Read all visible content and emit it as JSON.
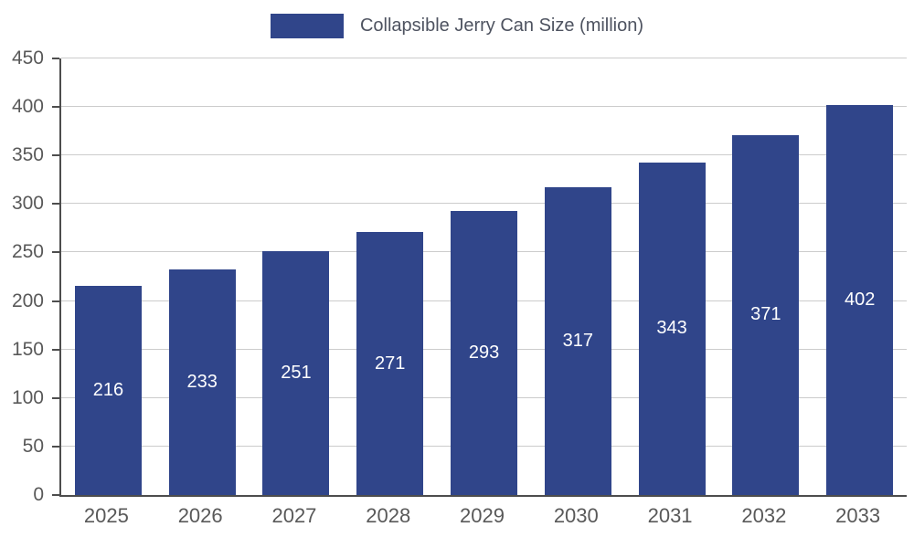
{
  "chart_data": {
    "type": "bar",
    "title": "Collapsible Jerry Can Size (million)",
    "categories": [
      "2025",
      "2026",
      "2027",
      "2028",
      "2029",
      "2030",
      "2031",
      "2032",
      "2033"
    ],
    "values": [
      216,
      233,
      251,
      271,
      293,
      317,
      343,
      371,
      402
    ],
    "xlabel": "",
    "ylabel": "",
    "ylim": [
      0,
      450
    ],
    "ytick_step": 50,
    "grid": true,
    "legend_position": "top",
    "bar_color": "#30458A",
    "value_label_color": "#ffffff",
    "grid_color": "#cccccc",
    "axis_color": "#4d4d4d",
    "tick_label_color": "#595959"
  }
}
